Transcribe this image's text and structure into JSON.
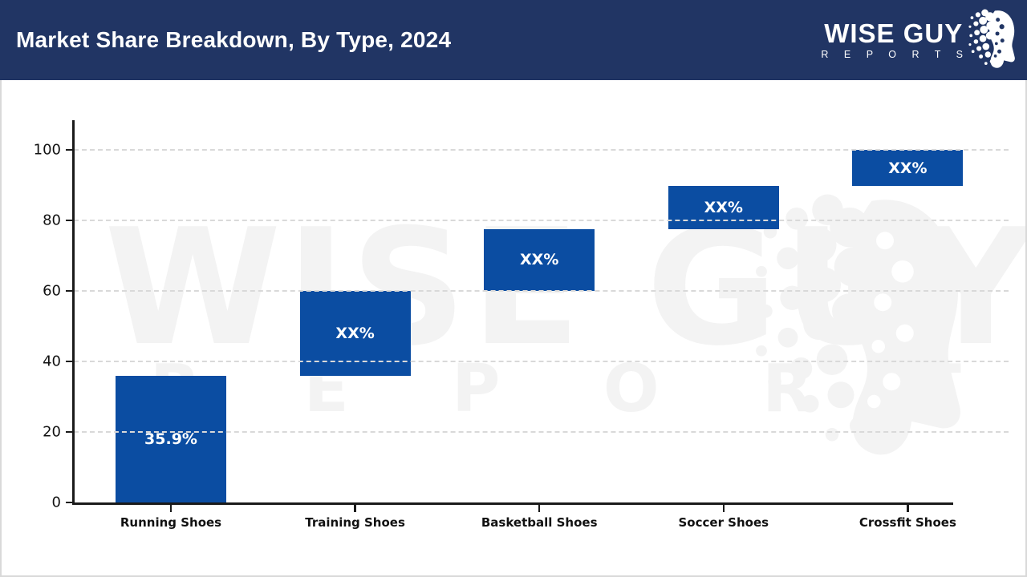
{
  "header": {
    "title": "Market Share Breakdown, By Type, 2024",
    "logo": {
      "brand": "WISE GUY",
      "tagline": "R E P O R T S"
    }
  },
  "watermark": {
    "brand": "WISE GUY",
    "tagline": "R E P O R T S"
  },
  "theme": {
    "header_bg": "#213564",
    "bar_color": "#0b4da2",
    "bar_label_color": "#ffffff",
    "axis_color": "#1a1a1a",
    "grid_color": "#d9d9d9",
    "tick_label_color": "#111111",
    "watermark_color": "#f3f3f3",
    "frame_border_color": "#d9d9d9"
  },
  "chart_data": {
    "type": "bar",
    "variant": "waterfall",
    "title": "Market Share Breakdown, By Type, 2024",
    "categories": [
      "Running Shoes",
      "Training Shoes",
      "Basketball Shoes",
      "Soccer Shoes",
      "Crossfit Shoes"
    ],
    "segments": [
      {
        "category": "Running Shoes",
        "start": 0.0,
        "end": 35.9,
        "label": "35.9%"
      },
      {
        "category": "Training Shoes",
        "start": 35.9,
        "end": 60.0,
        "label": "XX%"
      },
      {
        "category": "Basketball Shoes",
        "start": 60.0,
        "end": 77.6,
        "label": "XX%"
      },
      {
        "category": "Soccer Shoes",
        "start": 77.6,
        "end": 89.7,
        "label": "XX%"
      },
      {
        "category": "Crossfit Shoes",
        "start": 89.7,
        "end": 100.0,
        "label": "XX%"
      }
    ],
    "y_ticks": [
      0,
      20,
      40,
      60,
      80,
      100
    ],
    "ylim": [
      0,
      107
    ],
    "xlabel": "",
    "ylabel": "",
    "grid": {
      "horizontal": true,
      "style": "dashed",
      "drawn_over_bars": true
    },
    "legend": "none"
  }
}
